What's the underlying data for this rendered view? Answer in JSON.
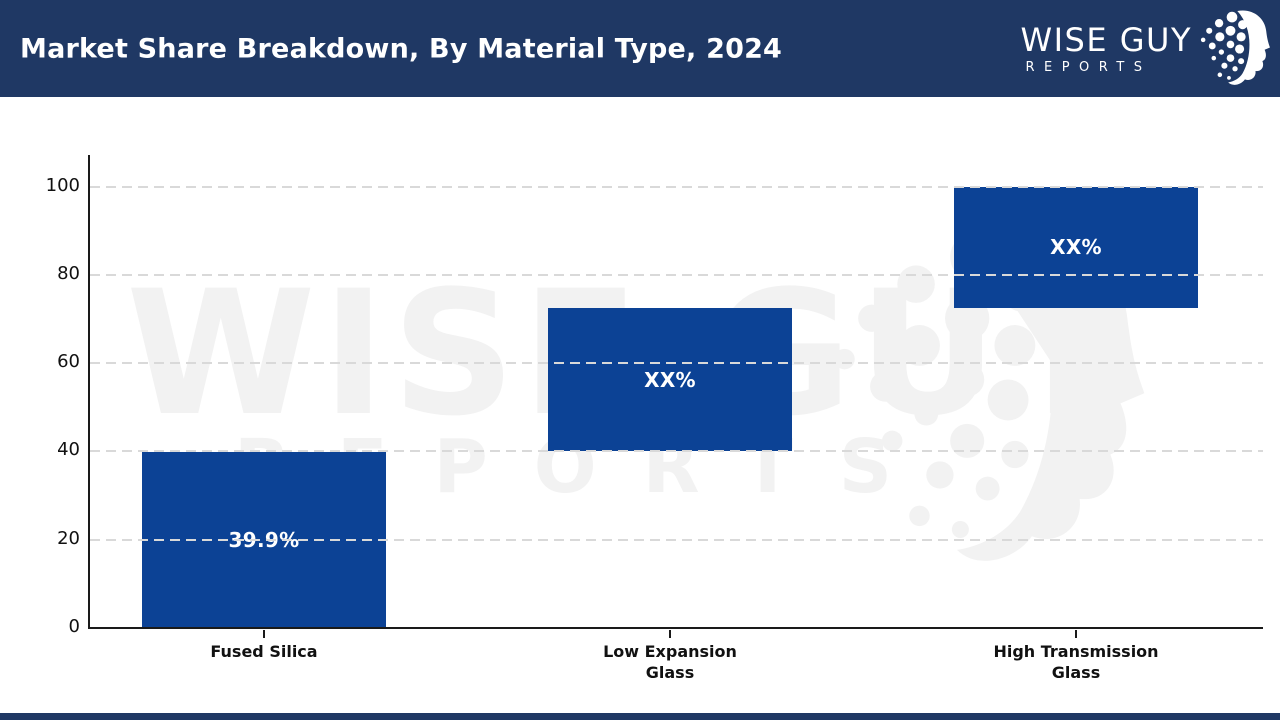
{
  "header": {
    "title": "Market Share Breakdown, By Material Type, 2024",
    "logo": {
      "line1": "WISE GUY",
      "line2": "REPORTS"
    }
  },
  "watermark": {
    "line1": "WISE GUY",
    "line2": "REPORTS"
  },
  "colors": {
    "header_bg": "#1F3864",
    "footer_bg": "#1F3864",
    "bar": "#0C4295",
    "grid": "#D9D9D9",
    "axis": "#1A1A1A",
    "value_label": "#FFFFFF",
    "watermark": "#F2F2F2"
  },
  "chart_data": {
    "type": "bar",
    "subtype": "range-bars (waterfall-style cumulative market share)",
    "title": "Market Share Breakdown, By Material Type, 2024",
    "categories": [
      "Fused Silica",
      "Low Expansion Glass",
      "High Transmission Glass"
    ],
    "category_lines": [
      [
        "Fused Silica"
      ],
      [
        "Low Expansion",
        "Glass"
      ],
      [
        "High Transmission",
        "Glass"
      ]
    ],
    "series": [
      {
        "name": "Market Share",
        "segments": [
          {
            "start": 0,
            "end": 39.9,
            "label": "39.9%"
          },
          {
            "start": 40,
            "end": 72.5,
            "label": "XX%"
          },
          {
            "start": 72.5,
            "end": 100,
            "label": "XX%"
          }
        ]
      }
    ],
    "yticks": [
      0,
      20,
      40,
      60,
      80,
      100
    ],
    "ylim": [
      0,
      107
    ],
    "xlabel": "",
    "ylabel": "",
    "grid": "horizontal-dashed",
    "legend": "none",
    "bar_color": "#0C4295"
  }
}
